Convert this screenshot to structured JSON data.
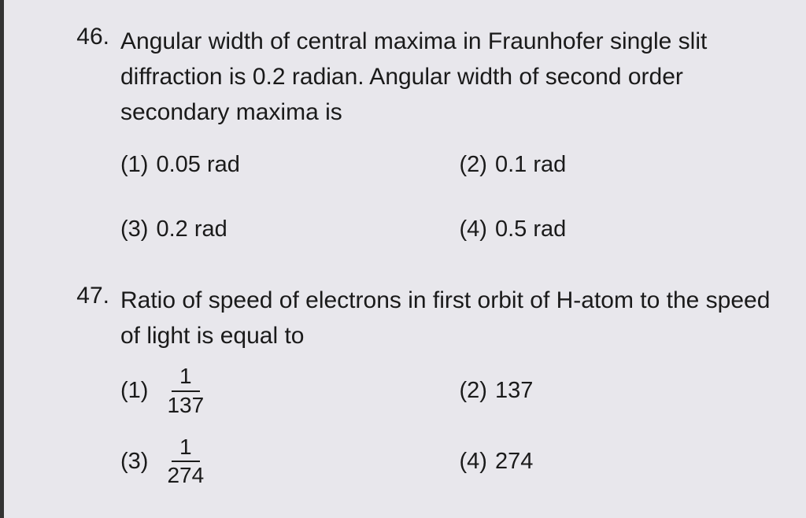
{
  "q46": {
    "number": "46.",
    "text": "Angular width of central maxima in Fraunhofer single slit diffraction is 0.2 radian. Angular width of second order secondary maxima is",
    "options": {
      "o1": {
        "label": "(1)",
        "text": "0.05 rad"
      },
      "o2": {
        "label": "(2)",
        "text": "0.1 rad"
      },
      "o3": {
        "label": "(3)",
        "text": "0.2 rad"
      },
      "o4": {
        "label": "(4)",
        "text": "0.5 rad"
      }
    }
  },
  "q47": {
    "number": "47.",
    "text": "Ratio of speed of electrons in first orbit of H-atom to the speed of light is equal to",
    "options": {
      "o1": {
        "label": "(1)",
        "frac_num": "1",
        "frac_den": "137"
      },
      "o2": {
        "label": "(2)",
        "text": "137"
      },
      "o3": {
        "label": "(3)",
        "frac_num": "1",
        "frac_den": "274"
      },
      "o4": {
        "label": "(4)",
        "text": "274"
      }
    }
  },
  "style": {
    "background_color": "#e8e7ec",
    "text_color": "#1a1a1a",
    "border_color": "#333333",
    "font_size_body": 30,
    "font_size_options": 29
  }
}
